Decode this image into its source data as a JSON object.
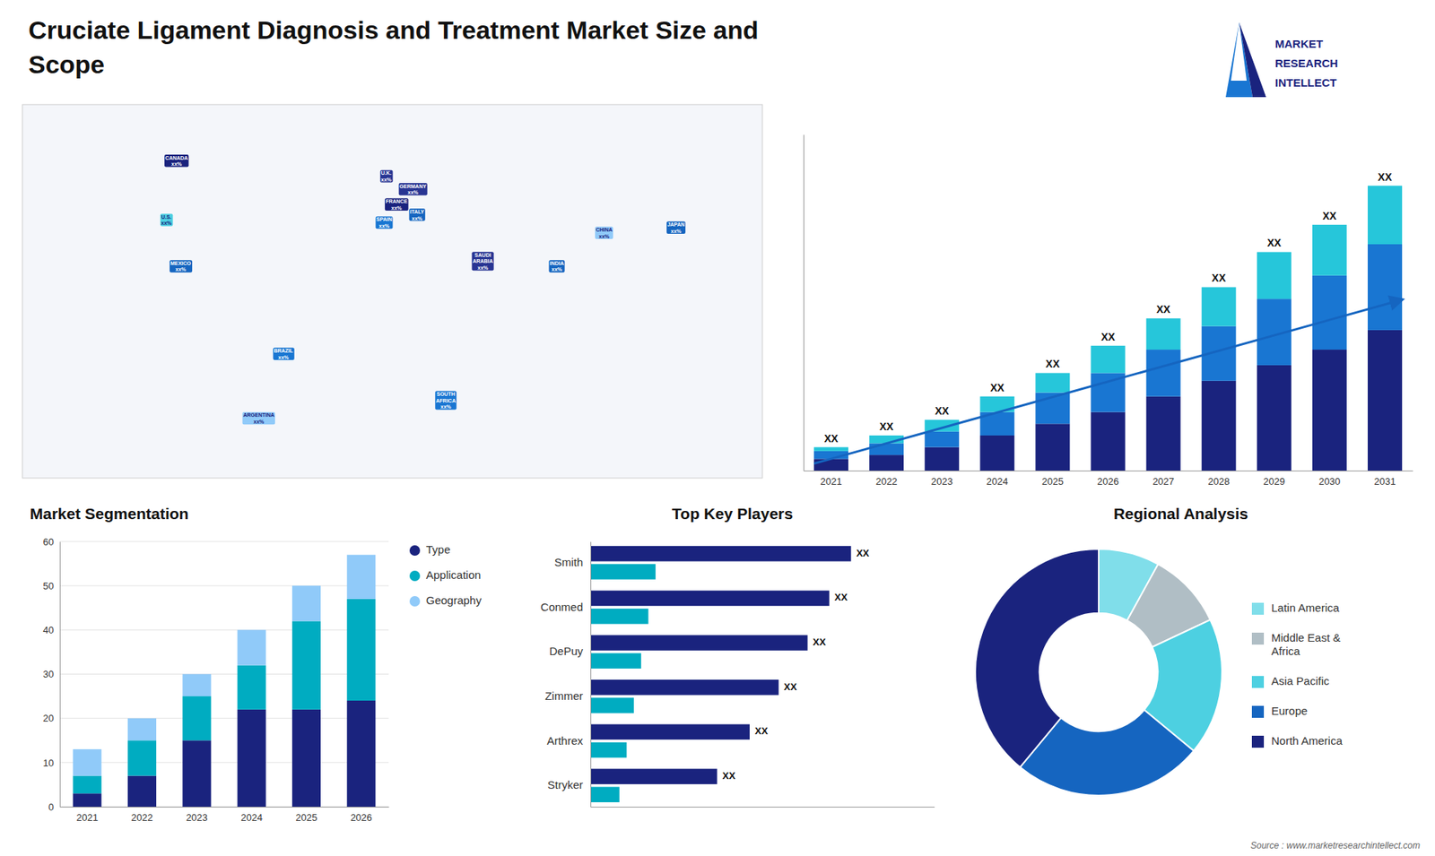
{
  "logo_text": [
    "MARKET",
    "RESEARCH",
    "INTELLECT"
  ],
  "source": "Source : www.marketresearchintellect.com",
  "chart_data": [
    {
      "type": "bar",
      "title": "Cruciate Ligament Diagnosis and Treatment Market Size and\nScope",
      "categories": [
        "2021",
        "2022",
        "2023",
        "2024",
        "2025",
        "2026",
        "2027",
        "2028",
        "2029",
        "2030",
        "2031"
      ],
      "series": [
        {
          "color": "#1a237e",
          "values": [
            3,
            4,
            6,
            9,
            12,
            15,
            19,
            23,
            27,
            31,
            36
          ]
        },
        {
          "color": "#1976d2",
          "values": [
            2,
            3,
            4,
            6,
            8,
            10,
            12,
            14,
            17,
            19,
            22
          ]
        },
        {
          "color": "#26c6da",
          "values": [
            1,
            2,
            3,
            4,
            5,
            7,
            8,
            10,
            12,
            13,
            15
          ]
        }
      ],
      "stacked": true,
      "ylim": [
        0,
        86.14
      ],
      "yticks": [],
      "tick_labels": "x",
      "grid": false,
      "annotations": [
        "XX",
        "XX",
        "XX",
        "XX",
        "XX",
        "XX",
        "XX",
        "XX",
        "XX",
        "XX",
        "XX"
      ]
    },
    {
      "type": "bar",
      "title": "Market Segmentation",
      "categories": [
        "2021",
        "2022",
        "2023",
        "2024",
        "2025",
        "2026"
      ],
      "series": [
        {
          "name": "Type",
          "color": "#1a237e",
          "values": [
            3,
            7,
            15,
            22,
            22,
            24
          ]
        },
        {
          "name": "Application",
          "color": "#00acc1",
          "values": [
            4,
            8,
            10,
            10,
            20,
            23
          ]
        },
        {
          "name": "Geography",
          "color": "#90caf9",
          "values": [
            6,
            5,
            5,
            8,
            8,
            10
          ]
        }
      ],
      "stacked": true,
      "ylim": [
        0,
        60
      ],
      "yticks": [
        0,
        10,
        20,
        30,
        40,
        50,
        60
      ],
      "grid": true,
      "legend": "right"
    },
    {
      "type": "bar",
      "title": "Top Key Players",
      "orientation": "horizontal",
      "categories": [
        "Smith",
        "Conmed",
        "DePuy",
        "Zimmer",
        "Arthrex",
        "Stryker"
      ],
      "series": [
        {
          "color": "#1a237e",
          "values": [
            0.72,
            0.66,
            0.6,
            0.52,
            0.44,
            0.35
          ]
        },
        {
          "color": "#00acc1",
          "values": [
            0.18,
            0.16,
            0.14,
            0.12,
            0.1,
            0.08
          ]
        }
      ],
      "xlim": [
        0,
        0.95
      ],
      "xticks": [],
      "tick_labels": "y",
      "grid": false,
      "annotations": [
        "XX",
        "XX",
        "XX",
        "XX",
        "XX",
        "XX"
      ]
    },
    {
      "type": "pie",
      "title": "Regional Analysis",
      "categories": [
        "Latin America",
        "Middle East &\nAfrica",
        "Asia Pacific",
        "Europe",
        "North America"
      ],
      "values": [
        8,
        10,
        18,
        25,
        39
      ],
      "colors": [
        "#80deea",
        "#b0bec5",
        "#4dd0e1",
        "#1565c0",
        "#1a237e"
      ],
      "legend": "right"
    },
    {
      "type": "map",
      "categories": [
        "CANADA",
        "U.S.",
        "MEXICO",
        "BRAZIL",
        "ARGENTINA",
        "U.K.",
        "FRANCE",
        "SPAIN",
        "GERMANY",
        "ITALY",
        "SAUDI\nARABIA",
        "SOUTH\nAFRICA",
        "CHINA",
        "INDIA",
        "JAPAN"
      ],
      "x": [
        -105,
        -110,
        -103,
        -53,
        -65,
        -3,
        2,
        -4,
        10,
        12,
        44,
        26,
        103,
        80,
        138
      ],
      "values": [
        63,
        40,
        22,
        -12,
        -37,
        57,
        46,
        39,
        52,
        42,
        24,
        -30,
        35,
        22,
        37
      ],
      "colors": [
        "#1a237e",
        "#4dd0e1",
        "#1565c0",
        "#1976d2",
        "#90caf9",
        "#283593",
        "#1a237e",
        "#1976d2",
        "#283593",
        "#1565c0",
        "#283593",
        "#1976d2",
        "#90caf9",
        "#1565c0",
        "#1565c0"
      ],
      "annotations": [
        "xx%",
        "xx%",
        "xx%",
        "xx%",
        "xx%",
        "xx%",
        "xx%",
        "xx%",
        "xx%",
        "xx%",
        "xx%",
        "xx%",
        "xx%",
        "xx%",
        "xx%"
      ],
      "xlim": [
        -180,
        180
      ],
      "ylim": [
        -60,
        85
      ],
      "tick_labels": false
    }
  ]
}
